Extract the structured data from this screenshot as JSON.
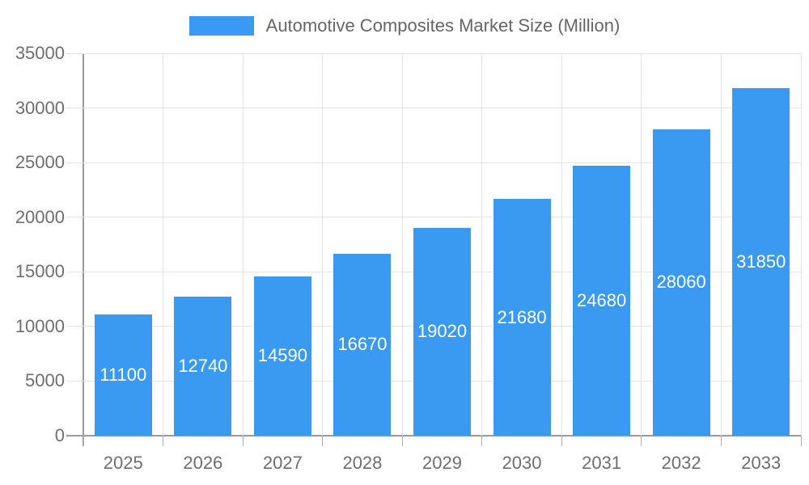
{
  "chart_data": {
    "type": "bar",
    "title": "Automotive Composites Market Size (Million)",
    "categories": [
      "2025",
      "2026",
      "2027",
      "2028",
      "2029",
      "2030",
      "2031",
      "2032",
      "2033"
    ],
    "values": [
      11100,
      12740,
      14590,
      16670,
      19020,
      21680,
      24680,
      28060,
      31850
    ],
    "xlabel": "",
    "ylabel": "",
    "ylim": [
      0,
      35000
    ],
    "yticks": [
      0,
      5000,
      10000,
      15000,
      20000,
      25000,
      30000,
      35000
    ],
    "grid": true,
    "legend_position": "top-center",
    "bar_value_labels": "inside-center",
    "colors": {
      "bar": "#3A99F0",
      "grid": "#E3E3E3",
      "axis": "#9A9A9A",
      "tick_mark": "#ADADAD",
      "tick_text": "#6E6E6E",
      "legend_text": "#666666",
      "bar_label_text": "#FFFFFF"
    }
  }
}
